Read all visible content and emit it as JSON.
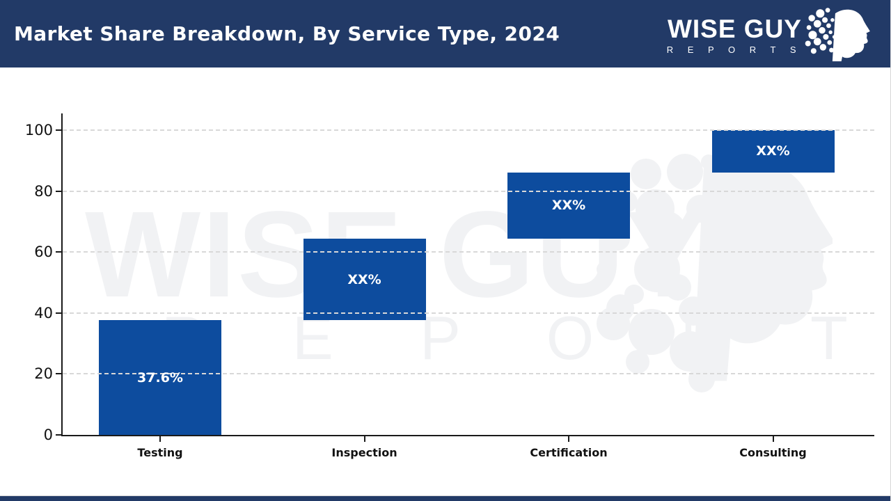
{
  "header": {
    "title": "Market Share Breakdown, By Service Type, 2024",
    "logo": {
      "line1": "WISE GUY",
      "line2": "R E P O R T S"
    }
  },
  "watermark": {
    "line1": "WISE GUY",
    "line2": "R E P O R T S"
  },
  "colors": {
    "header_bg": "#223A67",
    "footer_bg": "#223A67",
    "bar": "#0D4C9E",
    "grid": "#D8D8D8",
    "axis": "#1A1A1A",
    "bar_label_text": "#FFFFFF",
    "watermark": "#F1F2F4"
  },
  "chart_data": {
    "type": "bar",
    "subtype": "waterfall",
    "title": "Market Share Breakdown, By Service Type, 2024",
    "categories": [
      "Testing",
      "Inspection",
      "Certification",
      "Consulting"
    ],
    "bars": [
      {
        "category": "Testing",
        "start": 0,
        "end": 37.6,
        "label": "37.6%"
      },
      {
        "category": "Inspection",
        "start": 37.6,
        "end": 64.4,
        "label": "XX%"
      },
      {
        "category": "Certification",
        "start": 64.4,
        "end": 86.1,
        "label": "XX%"
      },
      {
        "category": "Consulting",
        "start": 86.1,
        "end": 100,
        "label": "XX%"
      }
    ],
    "xlabel": "",
    "ylabel": "",
    "yticks": [
      0,
      20,
      40,
      60,
      80,
      100
    ],
    "ylim": [
      0,
      105
    ],
    "grid": "horizontal-dashed-above-bars",
    "legend": null
  }
}
